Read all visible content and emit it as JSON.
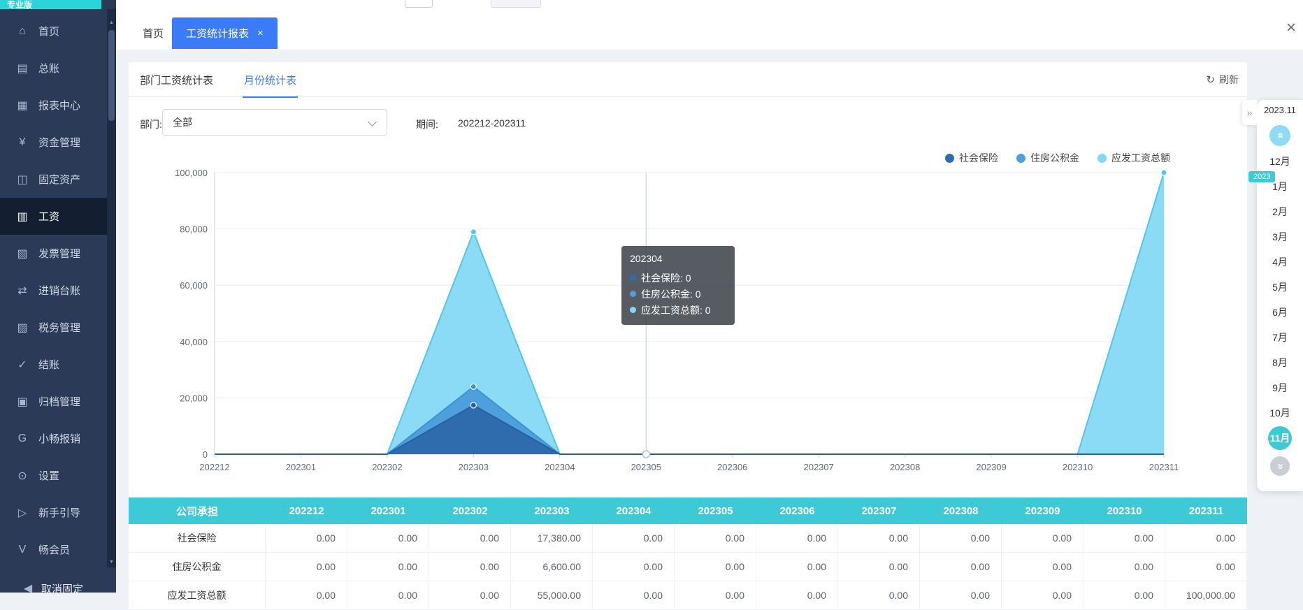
{
  "colors": {
    "accent_blue": "#3c7bf7",
    "teal": "#3ec9d6",
    "sidebar_bg": "#2b3a56",
    "sidebar_active_bg": "#141e31",
    "tooltip_bg": "#3a3e46"
  },
  "top": {
    "edition_badge": "专业版",
    "workspace_close": "×"
  },
  "tab_bar": {
    "home_tab": "首页",
    "active_tab": "工资统计报表",
    "active_tab_close": "×"
  },
  "sidebar": {
    "items": [
      {
        "id": "home",
        "icon": "⌂",
        "label": "首页"
      },
      {
        "id": "general-ledger",
        "icon": "▤",
        "label": "总账"
      },
      {
        "id": "report-center",
        "icon": "▦",
        "label": "报表中心"
      },
      {
        "id": "fund-management",
        "icon": "¥",
        "label": "资金管理"
      },
      {
        "id": "fixed-assets",
        "icon": "◫",
        "label": "固定资产"
      },
      {
        "id": "salary",
        "icon": "▥",
        "label": "工资",
        "active": true
      },
      {
        "id": "invoice-management",
        "icon": "▧",
        "label": "发票管理"
      },
      {
        "id": "purchase-sale-ledger",
        "icon": "⇄",
        "label": "进销台账"
      },
      {
        "id": "tax-management",
        "icon": "▨",
        "label": "税务管理"
      },
      {
        "id": "closing",
        "icon": "✓",
        "label": "结账"
      },
      {
        "id": "archive-management",
        "icon": "▣",
        "label": "归档管理"
      },
      {
        "id": "xiaochang-reimburse",
        "icon": "G",
        "label": "小畅报销"
      },
      {
        "id": "settings",
        "icon": "⊙",
        "label": "设置"
      },
      {
        "id": "beginner-guide",
        "icon": "▷",
        "label": "新手引导"
      },
      {
        "id": "chang-member",
        "icon": "V",
        "label": "畅会员"
      }
    ],
    "pin_item": {
      "id": "unpin",
      "icon": "◀",
      "label": "取消固定"
    },
    "scroll_up": "▲",
    "scroll_down": "▼"
  },
  "content": {
    "tabs": [
      {
        "id": "dept",
        "label": "部门工资统计表",
        "active": false
      },
      {
        "id": "month",
        "label": "月份统计表",
        "active": true
      }
    ],
    "refresh": {
      "icon": "↻",
      "label": "刷新"
    },
    "filters": {
      "dept_label": "部门:",
      "dept_value": "全部",
      "period_label": "期间:",
      "period_value": "202212-202311"
    }
  },
  "chart_data": {
    "type": "area",
    "stacked": true,
    "categories": [
      "202212",
      "202301",
      "202302",
      "202303",
      "202304",
      "202305",
      "202306",
      "202307",
      "202308",
      "202309",
      "202310",
      "202311"
    ],
    "series": [
      {
        "id": "social-insurance",
        "name": "社会保险",
        "color": "#2e6cae",
        "stroke": "#27619f",
        "fill_opacity": 1,
        "values": [
          0,
          0,
          0,
          17380,
          0,
          0,
          0,
          0,
          0,
          0,
          0,
          0
        ]
      },
      {
        "id": "housing-fund",
        "name": "住房公积金",
        "color": "#4da0dc",
        "stroke": "#3d92d2",
        "fill_opacity": 1,
        "values": [
          0,
          0,
          0,
          6600,
          0,
          0,
          0,
          0,
          0,
          0,
          0,
          0
        ]
      },
      {
        "id": "gross-salary",
        "name": "应发工资总额",
        "color": "#85d8f5",
        "stroke": "#55c5ec",
        "fill_opacity": 0.95,
        "values": [
          0,
          0,
          0,
          55000,
          0,
          0,
          0,
          0,
          0,
          0,
          0,
          100000
        ]
      }
    ],
    "ylim": [
      0,
      100000
    ],
    "yticks": [
      {
        "value": 0,
        "label": "0"
      },
      {
        "value": 20000,
        "label": "20,000"
      },
      {
        "value": 40000,
        "label": "40,000"
      },
      {
        "value": 60000,
        "label": "60,000"
      },
      {
        "value": 80000,
        "label": "80,000"
      },
      {
        "value": 100000,
        "label": "100,000"
      }
    ],
    "grid": true,
    "legend_position": "top-right",
    "tooltip": {
      "title": "202304",
      "crosshair_index": 5,
      "rows": [
        {
          "id": "social-insurance",
          "name": "社会保险",
          "value": "0",
          "color": "#2e6cae"
        },
        {
          "id": "housing-fund",
          "name": "住房公积金",
          "value": "0",
          "color": "#4da0dc"
        },
        {
          "id": "gross-salary",
          "name": "应发工资总额",
          "value": "0",
          "color": "#85d8f5"
        }
      ]
    }
  },
  "table": {
    "header": [
      "公司承担",
      "202212",
      "202301",
      "202302",
      "202303",
      "202304",
      "202305",
      "202306",
      "202307",
      "202308",
      "202309",
      "202310",
      "202311"
    ],
    "rows": [
      {
        "label": "社会保险",
        "values": [
          "0.00",
          "0.00",
          "0.00",
          "17,380.00",
          "0.00",
          "0.00",
          "0.00",
          "0.00",
          "0.00",
          "0.00",
          "0.00",
          "0.00"
        ]
      },
      {
        "label": "住房公积金",
        "values": [
          "0.00",
          "0.00",
          "0.00",
          "6,600.00",
          "0.00",
          "0.00",
          "0.00",
          "0.00",
          "0.00",
          "0.00",
          "0.00",
          "0.00"
        ]
      },
      {
        "label": "应发工资总额",
        "values": [
          "0.00",
          "0.00",
          "0.00",
          "55,000.00",
          "0.00",
          "0.00",
          "0.00",
          "0.00",
          "0.00",
          "0.00",
          "0.00",
          "100,000.00"
        ]
      }
    ]
  },
  "calendar": {
    "collapse_handle": "»",
    "current": "2023.11",
    "year_badge": "2023",
    "scroll_up": "«",
    "scroll_down": "«",
    "months": [
      "12月",
      "1月",
      "2月",
      "3月",
      "4月",
      "5月",
      "6月",
      "7月",
      "8月",
      "9月",
      "10月",
      "11月"
    ],
    "active_month": "11月"
  }
}
